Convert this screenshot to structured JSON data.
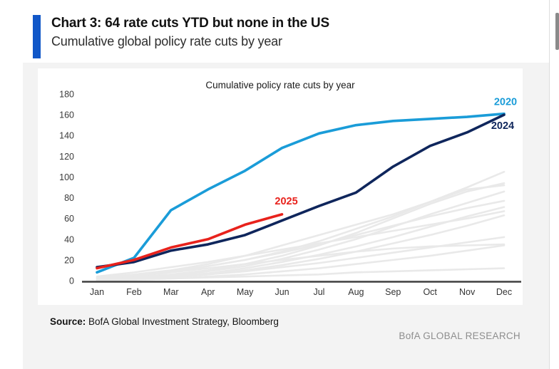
{
  "header": {
    "title": "Chart 3: 64 rate cuts YTD but none in the US",
    "subtitle": "Cumulative global policy rate cuts by year"
  },
  "footer": {
    "source_label": "Source:",
    "source_text": " BofA Global Investment Strategy, Bloomberg",
    "brand": "BofA GLOBAL RESEARCH"
  },
  "colors": {
    "accent_bar": "#1157c8",
    "axis": "#3f3f3f",
    "tick_label": "#3a3a3a",
    "line_2020": "#1a9cd8",
    "line_2024": "#0f265c",
    "line_2025": "#e8221c",
    "line_other": "#e9e9e9"
  },
  "chart_data": {
    "type": "line",
    "title": "Cumulative policy rate cuts by year",
    "x": [
      "Jan",
      "Feb",
      "Mar",
      "Apr",
      "May",
      "Jun",
      "Jul",
      "Aug",
      "Sep",
      "Oct",
      "Nov",
      "Dec"
    ],
    "xlabel": "",
    "ylabel": "",
    "ylim": [
      0,
      180
    ],
    "ytick_step": 20,
    "grid": false,
    "legend_position": "inline-labels",
    "series": [
      {
        "name": "other-year-1",
        "emphasis": "muted",
        "values": [
          2,
          4,
          8,
          14,
          20,
          28,
          38,
          50,
          62,
          76,
          90,
          105
        ]
      },
      {
        "name": "other-year-2",
        "emphasis": "muted",
        "values": [
          1,
          3,
          6,
          10,
          16,
          24,
          34,
          46,
          60,
          74,
          86,
          94
        ]
      },
      {
        "name": "other-year-3",
        "emphasis": "muted",
        "values": [
          3,
          6,
          10,
          16,
          24,
          34,
          44,
          54,
          64,
          76,
          88,
          92
        ]
      },
      {
        "name": "other-year-4",
        "emphasis": "muted",
        "values": [
          0,
          2,
          5,
          9,
          14,
          21,
          30,
          40,
          52,
          64,
          75,
          86
        ]
      },
      {
        "name": "other-year-5",
        "emphasis": "muted",
        "values": [
          2,
          5,
          9,
          14,
          20,
          27,
          35,
          44,
          53,
          62,
          70,
          77
        ]
      },
      {
        "name": "other-year-6",
        "emphasis": "muted",
        "values": [
          1,
          2,
          4,
          7,
          12,
          18,
          25,
          33,
          42,
          52,
          62,
          71
        ]
      },
      {
        "name": "other-year-7",
        "emphasis": "muted",
        "values": [
          4,
          8,
          13,
          18,
          24,
          30,
          36,
          42,
          48,
          54,
          60,
          67
        ]
      },
      {
        "name": "other-year-8",
        "emphasis": "muted",
        "values": [
          0,
          1,
          3,
          6,
          10,
          15,
          21,
          28,
          36,
          44,
          53,
          63
        ]
      },
      {
        "name": "other-year-9",
        "emphasis": "muted",
        "values": [
          1,
          2,
          4,
          6,
          9,
          13,
          17,
          22,
          27,
          32,
          37,
          42
        ]
      },
      {
        "name": "other-year-10",
        "emphasis": "muted",
        "values": [
          0,
          1,
          2,
          4,
          6,
          9,
          12,
          16,
          20,
          24,
          29,
          34
        ]
      },
      {
        "name": "other-year-11",
        "emphasis": "muted",
        "values": [
          3,
          5,
          8,
          12,
          16,
          20,
          24,
          28,
          31,
          33,
          34,
          35
        ]
      },
      {
        "name": "other-year-12",
        "emphasis": "muted",
        "values": [
          0,
          1,
          2,
          3,
          4,
          5,
          6,
          8,
          9,
          10,
          11,
          12
        ]
      },
      {
        "name": "2020",
        "emphasis": "highlight",
        "color_key": "line_2020",
        "values": [
          8,
          22,
          68,
          88,
          106,
          128,
          142,
          150,
          154,
          156,
          158,
          161
        ],
        "label": "2020",
        "label_offset": [
          2,
          -12
        ]
      },
      {
        "name": "2024",
        "emphasis": "highlight",
        "color_key": "line_2024",
        "values": [
          13,
          18,
          29,
          35,
          44,
          58,
          72,
          85,
          110,
          130,
          143,
          160
        ],
        "label": "2024",
        "label_offset": [
          -2,
          20
        ]
      },
      {
        "name": "2025",
        "emphasis": "highlight",
        "color_key": "line_2025",
        "values": [
          12,
          20,
          32,
          40,
          54,
          64
        ],
        "label": "2025",
        "label_offset": [
          6,
          -14
        ]
      }
    ]
  }
}
